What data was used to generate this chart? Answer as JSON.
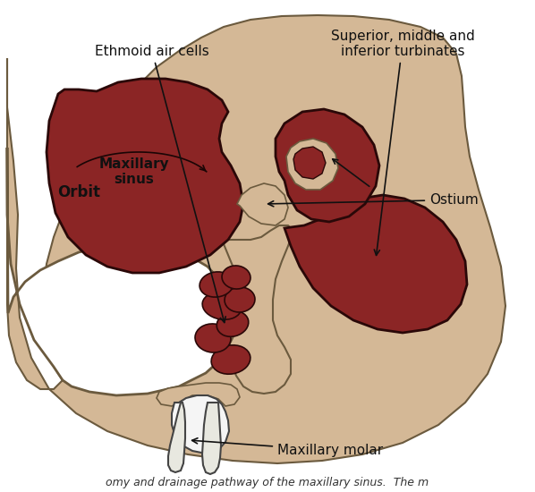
{
  "bg_color": "#ffffff",
  "bone_color": "#d4b896",
  "bone_edge_color": "#6b5a3e",
  "sinus_color": "#8b2525",
  "sinus_edge_color": "#2a0808",
  "orbit_color": "#ffffff",
  "tooth_color": "#e8e8e0",
  "tooth_highlight": "#f5f5f5",
  "tooth_edge_color": "#444444",
  "label_fontsize": 11,
  "label_color": "#111111",
  "arrow_color": "#111111",
  "caption_color": "#333333",
  "caption_fontsize": 9,
  "labels": {
    "ethmoid": "Ethmoid air cells",
    "turbinates": "Superior, middle and\ninferior turbinates",
    "orbit": "Orbit",
    "maxillary_sinus": "Maxillary\nsinus",
    "ostium": "Ostium",
    "maxillary_molar": "Maxillary molar"
  },
  "caption": "omy and drainage pathway of the maxillary sinus.  The m"
}
